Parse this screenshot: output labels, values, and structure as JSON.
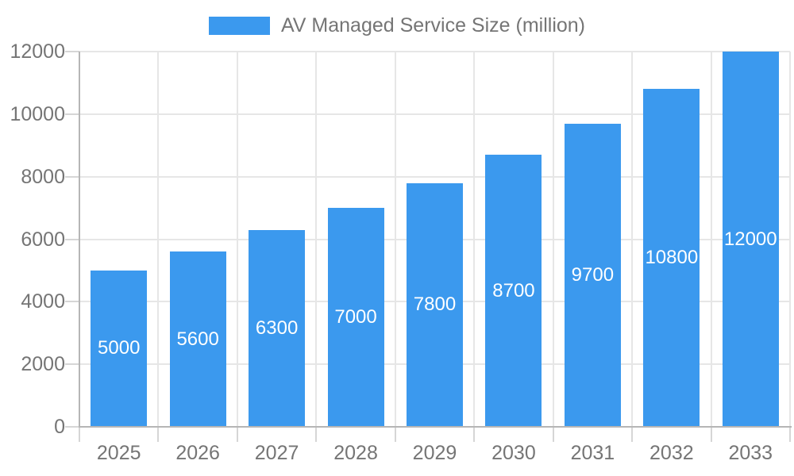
{
  "legend": {
    "label": "AV Managed Service Size (million)"
  },
  "colors": {
    "bar": "#3b99ee",
    "axis_text": "#757575",
    "gridline": "#e6e6e6",
    "axis_line": "#b6b6b6",
    "value_label": "#ffffff",
    "background": "#ffffff"
  },
  "chart_data": {
    "type": "bar",
    "title": "AV Managed Service Size (million)",
    "categories": [
      "2025",
      "2026",
      "2027",
      "2028",
      "2029",
      "2030",
      "2031",
      "2032",
      "2033"
    ],
    "values": [
      5000,
      5600,
      6300,
      7000,
      7800,
      8700,
      9700,
      10800,
      12000
    ],
    "value_labels": [
      "5000",
      "5600",
      "6300",
      "7000",
      "7800",
      "8700",
      "9700",
      "10800",
      "12000"
    ],
    "xlabel": "",
    "ylabel": "",
    "ylim": [
      0,
      12000
    ],
    "yticks": [
      0,
      2000,
      4000,
      6000,
      8000,
      10000,
      12000
    ],
    "grid": true,
    "legend_position": "top",
    "value_label_position": "inside-center-white"
  }
}
